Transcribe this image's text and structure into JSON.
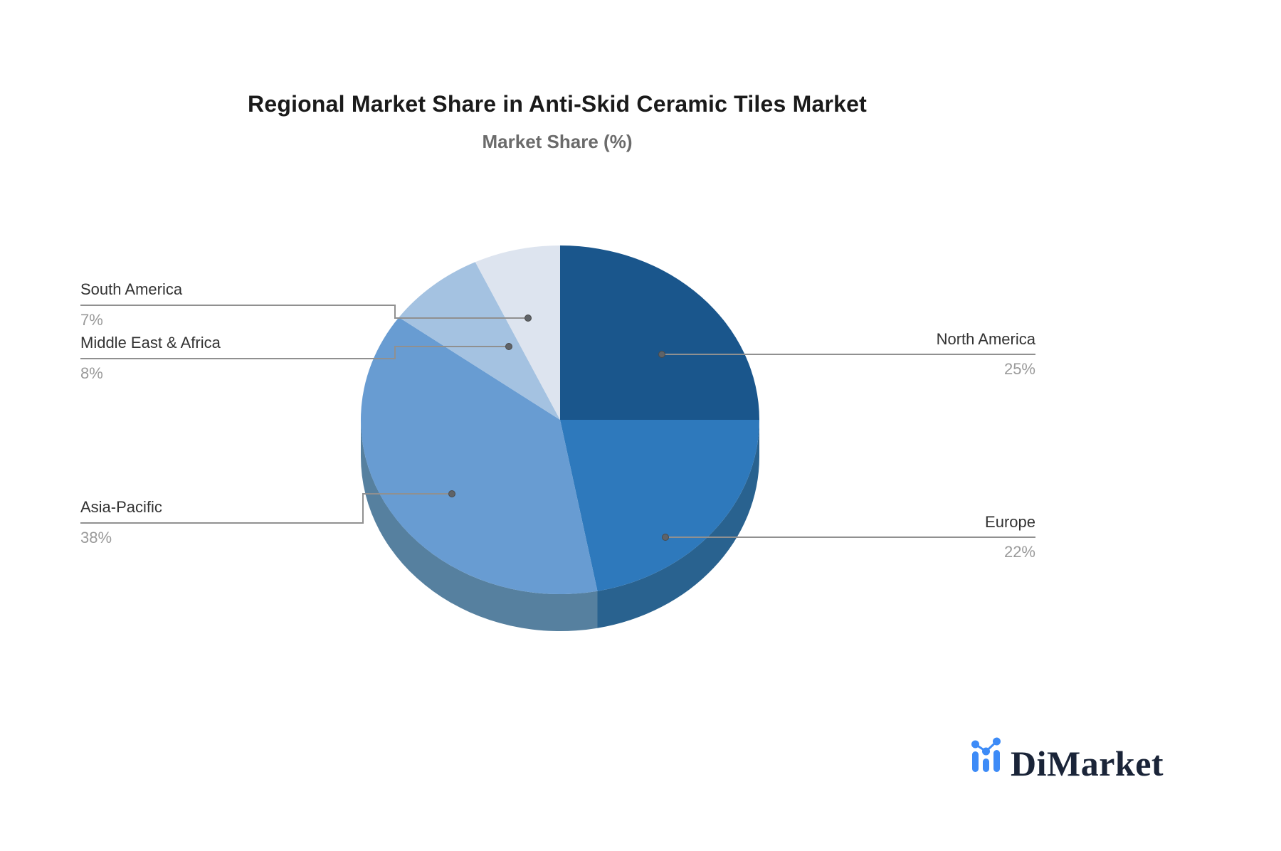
{
  "title": "Regional Market Share in Anti-Skid Ceramic Tiles Market",
  "subtitle": "Market Share (%)",
  "logo": {
    "text": "DiMarket"
  },
  "colors": {
    "leader_line": "#909090",
    "dot_fill": "#5f6368",
    "dot_stroke": "#4a4a4a",
    "label_text": "#333333",
    "pct_text": "#9a9a9a",
    "title_text": "#1a1a1a",
    "subtitle_text": "#6b6b6b",
    "logo_text": "#1a2438",
    "logo_icon": "#3d8bf7"
  },
  "chart_data": {
    "type": "pie",
    "title": "Regional Market Share in Anti-Skid Ceramic Tiles Market",
    "subtitle": "Market Share (%)",
    "unit": "percent",
    "style": "3d",
    "start_angle": "top",
    "direction": "clockwise",
    "legend_position": "callout-labels",
    "slices": [
      {
        "label": "North America",
        "value": 25,
        "pct_label": "25%",
        "color": "#1A568C",
        "side_color": "#164A79",
        "label_side": "right"
      },
      {
        "label": "Europe",
        "value": 22,
        "pct_label": "22%",
        "color": "#2E79BC",
        "side_color": "#29628F",
        "label_side": "right"
      },
      {
        "label": "Asia-Pacific",
        "value": 38,
        "pct_label": "38%",
        "color": "#689CD2",
        "side_color": "#56809F",
        "label_side": "left"
      },
      {
        "label": "Middle East & Africa",
        "value": 8,
        "pct_label": "8%",
        "color": "#A4C2E1",
        "side_color": "#8FA9C4",
        "label_side": "left"
      },
      {
        "label": "South America",
        "value": 7,
        "pct_label": "7%",
        "color": "#DDE4EF",
        "side_color": "#C2CBD9",
        "label_side": "left"
      }
    ]
  }
}
